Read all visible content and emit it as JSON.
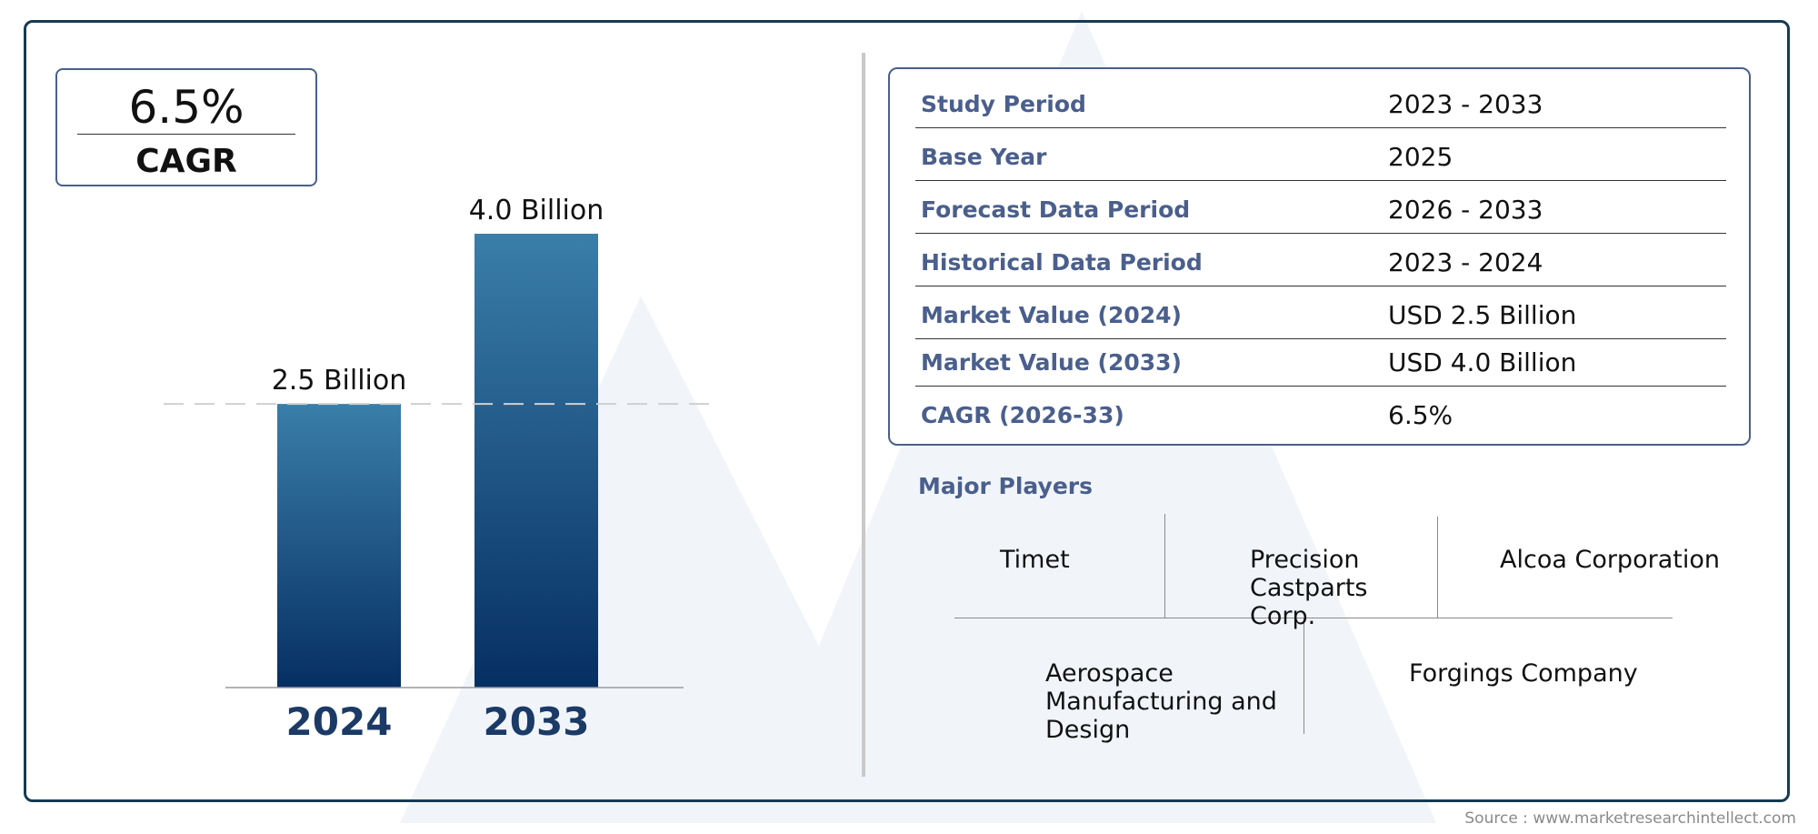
{
  "chart_data": {
    "type": "bar",
    "categories": [
      "2024",
      "2033"
    ],
    "values": [
      2.5,
      4.0
    ],
    "data_labels": [
      "2.5 Billion",
      "4.0 Billion"
    ],
    "ylim": [
      0,
      4.0
    ],
    "reference_line": 2.5
  },
  "cagr": {
    "value": "6.5%",
    "label": "CAGR"
  },
  "summary_table": [
    {
      "label": "Study Period",
      "value": "2023 - 2033"
    },
    {
      "label": "Base Year",
      "value": "2025"
    },
    {
      "label": "Forecast Data Period",
      "value": "2026 - 2033"
    },
    {
      "label": "Historical Data Period",
      "value": "2023 - 2024"
    },
    {
      "label": "Market Value (2024)",
      "value": "USD 2.5 Billion"
    },
    {
      "label": "Market Value (2033)",
      "value": "USD 4.0 Billion"
    },
    {
      "label": "CAGR (2026-33)",
      "value": "6.5%"
    }
  ],
  "players": {
    "title": "Major Players",
    "items": [
      "Timet",
      "Precision Castparts Corp.",
      "Alcoa Corporation",
      "Aerospace Manufacturing and Design",
      "Forgings Company"
    ]
  },
  "source": "Source : www.marketresearchintellect.com",
  "colors": {
    "bar_top": "#3a7eaa",
    "bar_bottom": "#062f63",
    "label_accent": "#4a5f8c",
    "year_label": "#1b3a66",
    "frame": "#163a52"
  }
}
